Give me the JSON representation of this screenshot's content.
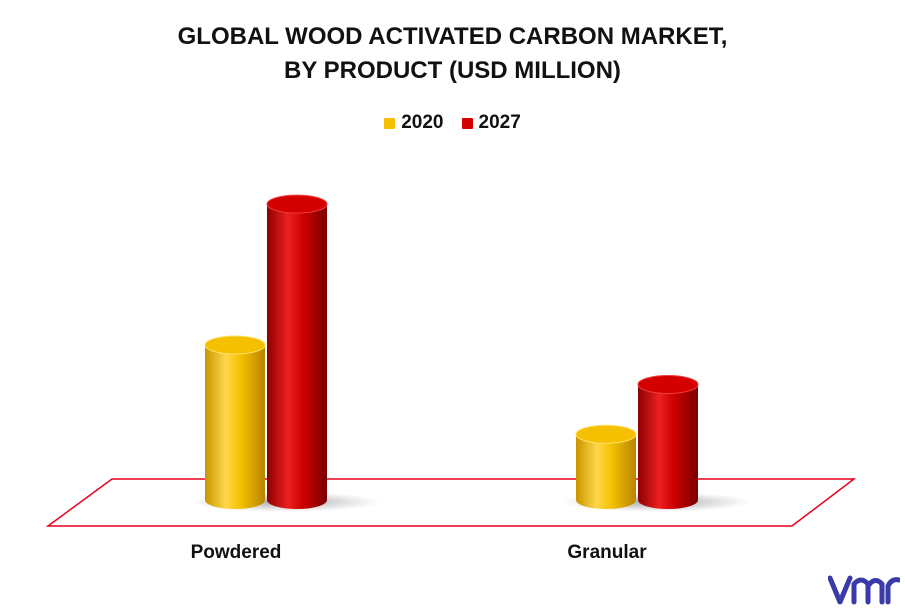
{
  "chart_data": {
    "type": "bar",
    "title_lines": [
      "GLOBAL WOOD ACTIVATED CARBON MARKET,",
      "BY PRODUCT (USD MILLION)"
    ],
    "xlabel": "",
    "ylabel": "",
    "categories": [
      "Powdered",
      "Granular"
    ],
    "series": [
      {
        "name": "2020",
        "color": "#f5c000",
        "values": [
          165,
          70
        ]
      },
      {
        "name": "2027",
        "color": "#d40000",
        "values": [
          315,
          123
        ]
      }
    ],
    "ylim": [
      0,
      330
    ],
    "legend": "top-center",
    "grid": false,
    "style": "3d-cylinder"
  },
  "floor_color": "#e8001c",
  "logo": {
    "icon": "vmr-logo-icon",
    "text": "VMR",
    "color": "#3a3aa8"
  }
}
